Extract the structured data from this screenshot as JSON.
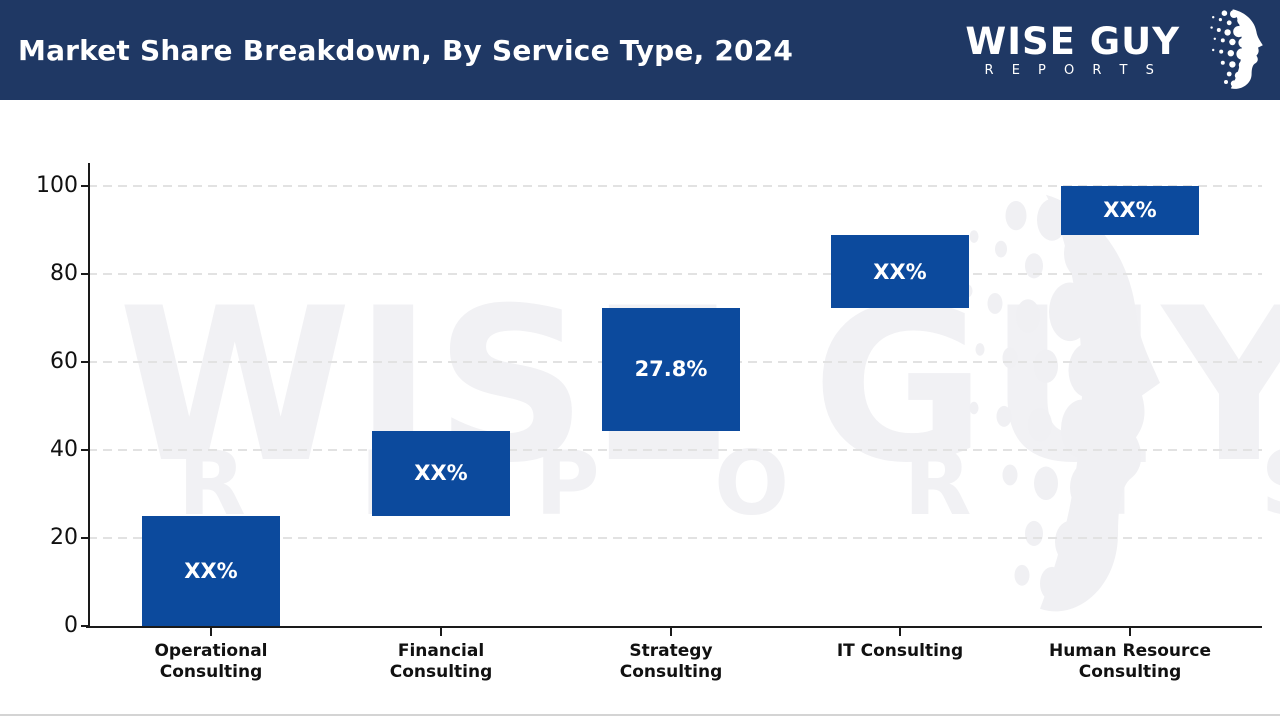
{
  "header": {
    "title": "Market Share Breakdown, By Service Type, 2024",
    "logo": {
      "name": "WISE GUY",
      "subtitle": "R E P O R T S"
    }
  },
  "watermark": {
    "name": "WISE GUY",
    "subtitle": "R E P O R T S"
  },
  "chart_data": {
    "type": "bar",
    "subtype": "floating-waterfall",
    "title": "Market Share Breakdown, By Service Type, 2024",
    "categories": [
      "Operational Consulting",
      "Financial Consulting",
      "Strategy Consulting",
      "IT Consulting",
      "Human Resource Consulting"
    ],
    "category_lines": [
      [
        "Operational",
        "Consulting"
      ],
      [
        "Financial",
        "Consulting"
      ],
      [
        "Strategy",
        "Consulting"
      ],
      [
        "IT Consulting"
      ],
      [
        "Human Resource",
        "Consulting"
      ]
    ],
    "segments": [
      {
        "category": "Operational Consulting",
        "start": 0,
        "end": 25,
        "value_label": "XX%"
      },
      {
        "category": "Financial Consulting",
        "start": 25,
        "end": 44.4,
        "value_label": "XX%"
      },
      {
        "category": "Strategy Consulting",
        "start": 44.4,
        "end": 72.2,
        "value_label": "27.8%"
      },
      {
        "category": "IT Consulting",
        "start": 72.2,
        "end": 88.9,
        "value_label": "XX%"
      },
      {
        "category": "Human Resource Consulting",
        "start": 88.9,
        "end": 100,
        "value_label": "XX%"
      }
    ],
    "yticks": [
      0,
      20,
      40,
      60,
      80,
      100
    ],
    "ylim": [
      0,
      105
    ],
    "xlabel": "",
    "ylabel": "",
    "grid": "horizontal-dashed",
    "legend": "none",
    "bar_color": "#0c4a9d"
  },
  "colors": {
    "header_bg": "#1f3864",
    "bar": "#0c4a9d",
    "grid": "#e2e2e2",
    "axis": "#1a1a1a",
    "watermark": "#f1f1f4",
    "footer_line": "#d4d4d4",
    "title_text": "#ffffff"
  }
}
